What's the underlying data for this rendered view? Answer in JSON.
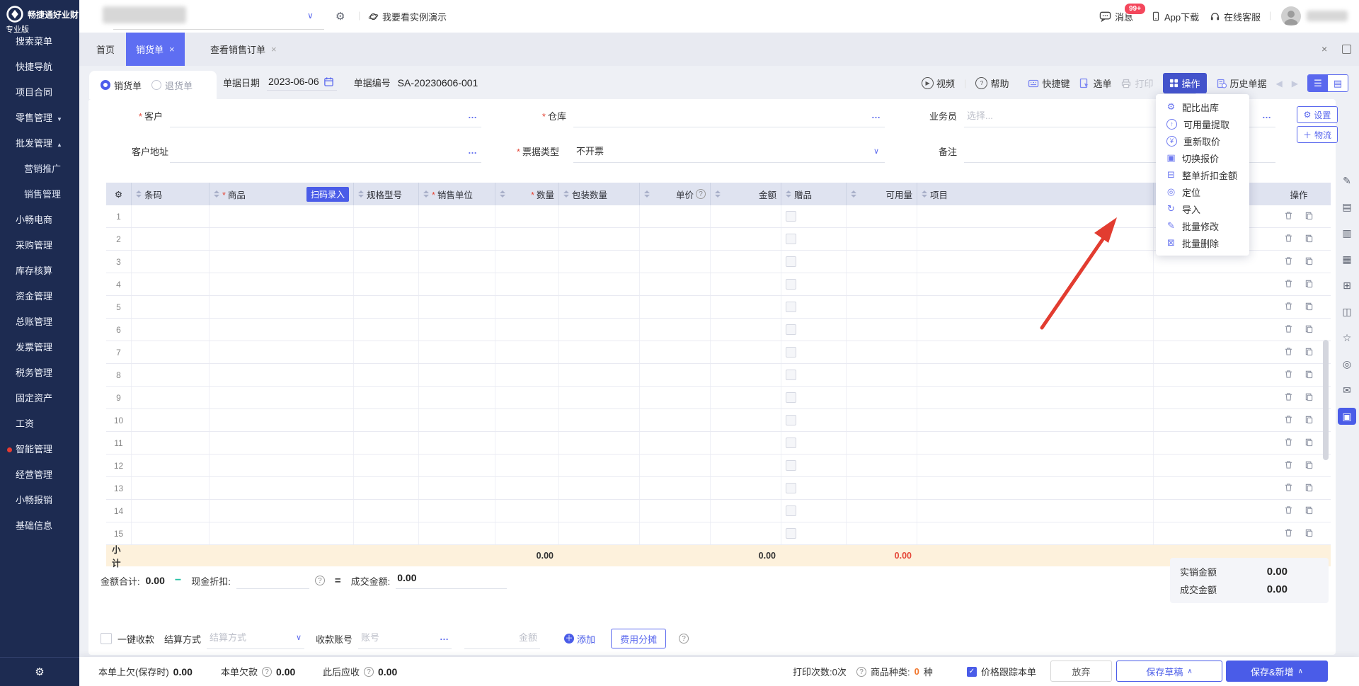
{
  "brand": {
    "name": "畅捷通好业财",
    "edition": "专业版"
  },
  "topbar": {
    "demo": "我要看实例演示",
    "messages": "消息",
    "badge": "99+",
    "app": "App下载",
    "service": "在线客服"
  },
  "tabs": [
    {
      "label": "首页",
      "active": false,
      "closable": false
    },
    {
      "label": "销货单",
      "active": true,
      "closable": true
    },
    {
      "label": "查看销售订单",
      "active": false,
      "closable": true
    }
  ],
  "sidebar": {
    "items": [
      {
        "label": "搜索菜单"
      },
      {
        "label": "快捷导航"
      },
      {
        "label": "项目合同"
      },
      {
        "label": "零售管理",
        "arrow": "down"
      },
      {
        "label": "批发管理",
        "arrow": "up"
      },
      {
        "label": "营销推广",
        "sub": true
      },
      {
        "label": "销售管理",
        "sub": true
      },
      {
        "label": "小畅电商"
      },
      {
        "label": "采购管理"
      },
      {
        "label": "库存核算"
      },
      {
        "label": "资金管理"
      },
      {
        "label": "总账管理"
      },
      {
        "label": "发票管理"
      },
      {
        "label": "税务管理"
      },
      {
        "label": "固定资产"
      },
      {
        "label": "工资"
      },
      {
        "label": "智能管理",
        "dot": true
      },
      {
        "label": "经营管理"
      },
      {
        "label": "小畅报销"
      },
      {
        "label": "基础信息"
      }
    ]
  },
  "toolbar": {
    "doc_type_sale": "销货单",
    "doc_type_return": "退货单",
    "date_label": "单据日期",
    "date_value": "2023-06-06",
    "no_label": "单据编号",
    "no_value": "SA-20230606-001",
    "video": "视频",
    "help": "帮助",
    "hotkeys": "快捷键",
    "pick": "选单",
    "print": "打印",
    "action": "操作",
    "history": "历史单据"
  },
  "action_menu": {
    "items": [
      {
        "icon": "gear",
        "label": "配比出库"
      },
      {
        "icon": "arrow-up-circle",
        "label": "可用量提取"
      },
      {
        "icon": "yen-circle",
        "label": "重新取价"
      },
      {
        "icon": "image",
        "label": "切换报价"
      },
      {
        "icon": "ticket",
        "label": "整单折扣金额"
      },
      {
        "icon": "pin",
        "label": "定位"
      },
      {
        "icon": "import",
        "label": "导入"
      },
      {
        "icon": "edit",
        "label": "批量修改"
      },
      {
        "icon": "delete",
        "label": "批量删除"
      }
    ]
  },
  "form": {
    "customer": "客户",
    "warehouse": "仓库",
    "salesman": "业务员",
    "salesman_placeholder": "选择...",
    "address": "客户地址",
    "invoice_type": "票据类型",
    "invoice_value": "不开票",
    "remark": "备注",
    "settings": "设置",
    "logistics": "物流"
  },
  "table": {
    "scan_button": "扫码录入",
    "ops": "操作",
    "row_count": 15,
    "columns": [
      {
        "label": "条码"
      },
      {
        "label": "商品",
        "required": true,
        "scan": true
      },
      {
        "label": "规格型号"
      },
      {
        "label": "销售单位",
        "required": true
      },
      {
        "label": "数量",
        "required": true,
        "align": "right"
      },
      {
        "label": "包装数量"
      },
      {
        "label": "单价",
        "help": true,
        "align": "right"
      },
      {
        "label": "金额",
        "align": "right"
      },
      {
        "label": "赠品",
        "checkbox": true
      },
      {
        "label": "可用量",
        "align": "right"
      },
      {
        "label": "项目"
      }
    ],
    "subtotal": {
      "label": "小计",
      "qty": "0.00",
      "amount": "0.00",
      "available": "0.00"
    }
  },
  "summary": {
    "total_label": "金额合计:",
    "total": "0.00",
    "discount_label": "现金折扣:",
    "deal_label": "成交金额:",
    "deal": "0.00",
    "box": [
      {
        "label": "实销金额",
        "value": "0.00"
      },
      {
        "label": "成交金额",
        "value": "0.00"
      }
    ]
  },
  "payment": {
    "oneclick": "一键收款",
    "settle_label": "结算方式",
    "settle_placeholder": "结算方式",
    "account_label": "收款账号",
    "account_placeholder": "账号",
    "amount_placeholder": "金额",
    "add": "添加",
    "share": "费用分摊"
  },
  "footer": {
    "owed_label": "本单上欠(保存时)",
    "owed": "0.00",
    "debt_label": "本单欠款",
    "debt": "0.00",
    "later_label": "此后应收",
    "later": "0.00",
    "print_label": "打印次数:0次",
    "sku_label": "商品种类:",
    "sku_count": "0",
    "sku_unit": "种",
    "track": "价格跟踪本单",
    "cancel": "放弃",
    "draft": "保存草稿",
    "save": "保存&新增"
  },
  "right_strip": {
    "icons": [
      "edit",
      "document",
      "clipboard",
      "film",
      "grid",
      "attach",
      "star",
      "target",
      "mail",
      "panel"
    ]
  },
  "colors": {
    "accent": "#4a5ce8",
    "danger": "#e5493a",
    "subtotal_bg": "#fdf1dc",
    "sidebar_bg": "#1d2b51"
  }
}
